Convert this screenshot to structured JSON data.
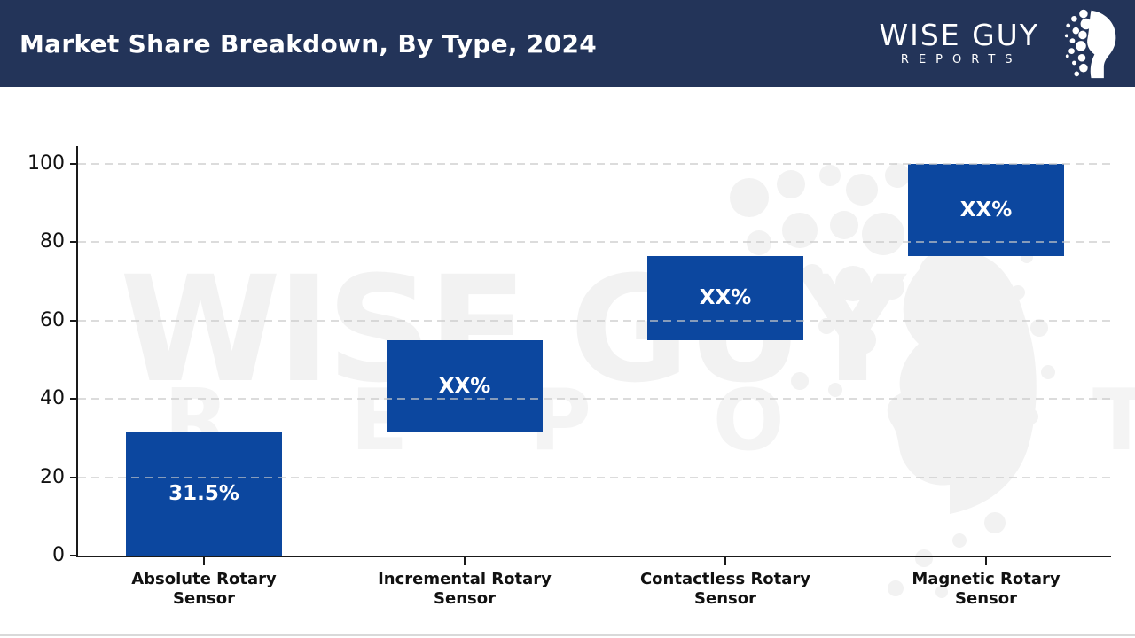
{
  "header": {
    "title": "Market Share Breakdown, By Type, 2024",
    "logo": {
      "brand": "WISE GUY",
      "sub": "REPORTS"
    }
  },
  "watermark": {
    "brand": "WISE GUY",
    "sub": "R E P O R T S"
  },
  "chart_data": {
    "type": "bar",
    "subtype": "waterfall",
    "title": "Market Share Breakdown, By Type, 2024",
    "categories": [
      "Absolute Rotary Sensor",
      "Incremental Rotary Sensor",
      "Contactless Rotary Sensor",
      "Magnetic Rotary Sensor"
    ],
    "segments": [
      {
        "category": "Absolute Rotary Sensor",
        "start": 0,
        "end": 31.5,
        "label": "31.5%"
      },
      {
        "category": "Incremental Rotary Sensor",
        "start": 31.5,
        "end": 55,
        "label": "XX%"
      },
      {
        "category": "Contactless Rotary Sensor",
        "start": 55,
        "end": 76.5,
        "label": "XX%"
      },
      {
        "category": "Magnetic Rotary Sensor",
        "start": 76.5,
        "end": 100,
        "label": "XX%"
      }
    ],
    "y_ticks": [
      0,
      20,
      40,
      60,
      80,
      100
    ],
    "ylim": [
      0,
      105
    ],
    "xlabel": "",
    "ylabel": "",
    "grid": "horizontal-dashed",
    "legend": null,
    "colors": {
      "bar": "#0c479f",
      "value_label": "#ffffff",
      "header_bg": "#233459",
      "header_text": "#ffffff",
      "axis": "#1a1a1a",
      "grid": "#c9c9c9",
      "tick_label": "#111111",
      "watermark": "#f2f2f2"
    }
  }
}
